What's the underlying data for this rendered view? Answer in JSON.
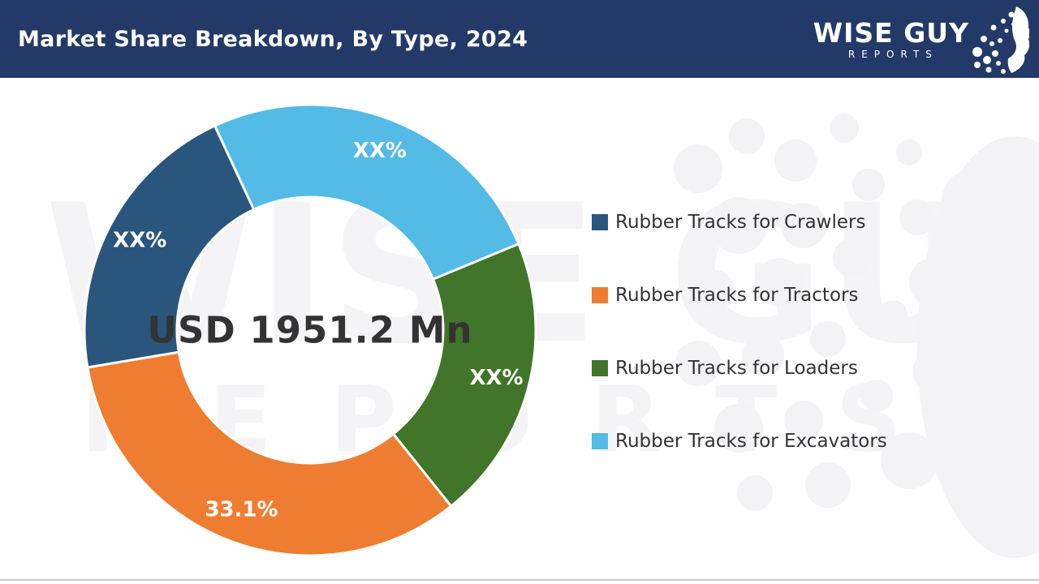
{
  "page": {
    "colors": {
      "background": "#ffffff",
      "header_bg": "#233A68",
      "footer_line": "#c9c9c9",
      "center_text": "#333333",
      "legend_text": "#333333",
      "slice_label_text": "#ffffff",
      "watermark": "#f4f4f6"
    }
  },
  "header": {
    "title": "Market Share Breakdown, By Type, 2024",
    "logo": {
      "line1": "WISE GUY",
      "line2": "REPORTS"
    }
  },
  "chart_data": {
    "type": "donut",
    "title": "Market Share Breakdown, By Type, 2024",
    "center_label": "USD 1951.2 Mn",
    "start_angle_deg": -25,
    "donut_hole_ratio": 0.59,
    "legend_position": "right",
    "grid": false,
    "slices": [
      {
        "label": "Rubber Tracks for Excavators",
        "display_value": "XX%",
        "value_pct": 25.7,
        "color": "#53BBE5"
      },
      {
        "label": "Rubber Tracks for Loaders",
        "display_value": "XX%",
        "value_pct": 20.5,
        "color": "#40752A"
      },
      {
        "label": "Rubber Tracks for Tractors",
        "display_value": "33.1%",
        "value_pct": 33.1,
        "color": "#EE7D31"
      },
      {
        "label": "Rubber Tracks for Crawlers",
        "display_value": "XX%",
        "value_pct": 20.7,
        "color": "#2A567D"
      }
    ]
  },
  "legend": {
    "items": [
      {
        "label": "Rubber Tracks for Crawlers",
        "color": "#2A567D"
      },
      {
        "label": "Rubber Tracks for Tractors",
        "color": "#EE7D31"
      },
      {
        "label": "Rubber Tracks for Loaders",
        "color": "#40752A"
      },
      {
        "label": "Rubber Tracks for Excavators",
        "color": "#53BBE5"
      }
    ]
  },
  "watermark": {
    "line1": "WISE GUY",
    "line2": "REPORTS"
  }
}
